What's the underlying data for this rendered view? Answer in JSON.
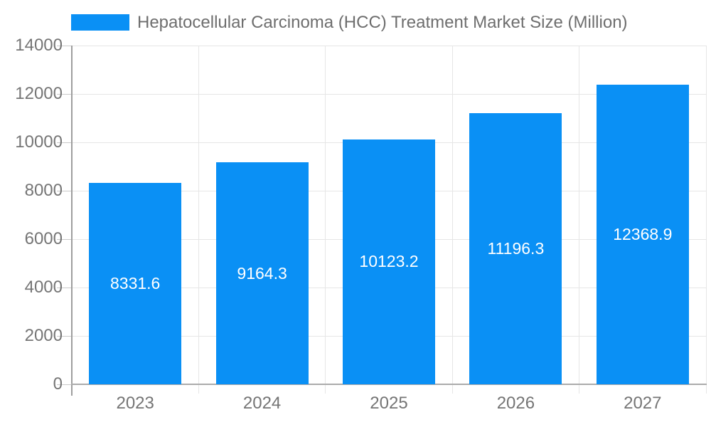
{
  "chart_data": {
    "type": "bar",
    "title": "Hepatocellular Carcinoma (HCC) Treatment Market Size (Million)",
    "categories": [
      "2023",
      "2024",
      "2025",
      "2026",
      "2027"
    ],
    "values": [
      8331.6,
      9164.3,
      10123.2,
      11196.3,
      12368.9
    ],
    "value_labels": [
      "8331.6",
      "9164.3",
      "10123.2",
      "11196.3",
      "12368.9"
    ],
    "xlabel": "",
    "ylabel": "",
    "ylim": [
      0,
      14000
    ],
    "y_ticks": [
      0,
      2000,
      4000,
      6000,
      8000,
      10000,
      12000,
      14000
    ],
    "y_tick_labels": [
      "0",
      "2000",
      "4000",
      "6000",
      "8000",
      "10000",
      "12000",
      "14000"
    ],
    "legend_position": "top-left",
    "grid": true,
    "colors": {
      "bar": "#0a90f5",
      "title_text": "#6e6e6e",
      "axis_text": "#757575",
      "gridline": "#e6e6e6",
      "axis_line": "#9e9e9e",
      "baseline": "#ababab",
      "tick_stub": "#c9c9c9",
      "value_label_text": "#ffffff",
      "background": "#ffffff"
    }
  }
}
